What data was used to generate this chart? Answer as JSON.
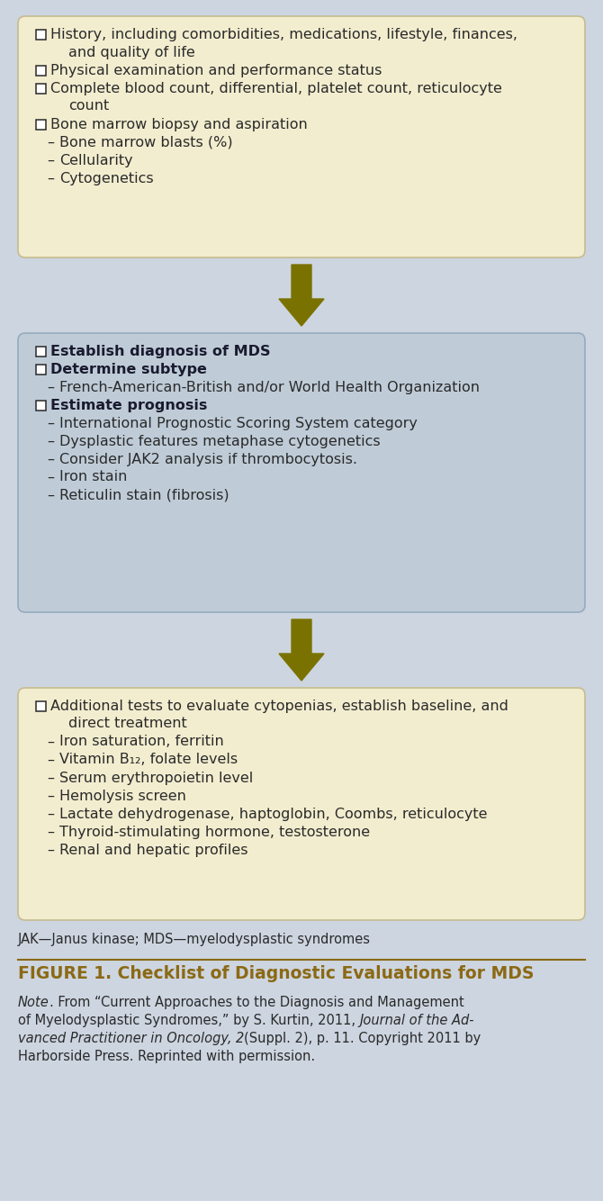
{
  "fig_bg": "#cdd5e0",
  "box1_bg": "#f2edcf",
  "box1_border": "#c5bc8e",
  "box2_bg": "#bfccd8",
  "box2_border": "#96abbe",
  "box3_bg": "#f2edcf",
  "box3_border": "#c5bc8e",
  "arrow_color": "#7a7200",
  "text_color": "#2a2a2a",
  "bold_text_color": "#1a1a2e",
  "figure_title": "FIGURE 1. Checklist of Diagnostic Evaluations for MDS",
  "figure_title_color": "#8B6914",
  "footnote": "JAK—Janus kinase; MDS—myelodysplastic syndromes",
  "box1_items": [
    {
      "type": "checkbox",
      "lines": [
        "History, including comorbidities, medications, lifestyle, finances,",
        "    and quality of life"
      ],
      "bold": false
    },
    {
      "type": "checkbox",
      "lines": [
        "Physical examination and performance status"
      ],
      "bold": false
    },
    {
      "type": "checkbox",
      "lines": [
        "Complete blood count, differential, platelet count, reticulocyte",
        "    count"
      ],
      "bold": false
    },
    {
      "type": "checkbox",
      "lines": [
        "Bone marrow biopsy and aspiration"
      ],
      "bold": false
    },
    {
      "type": "dash",
      "lines": [
        "Bone marrow blasts (%)"
      ],
      "bold": false
    },
    {
      "type": "dash",
      "lines": [
        "Cellularity"
      ],
      "bold": false
    },
    {
      "type": "dash",
      "lines": [
        "Cytogenetics"
      ],
      "bold": false
    }
  ],
  "box2_items": [
    {
      "type": "checkbox",
      "lines": [
        "Establish diagnosis of MDS"
      ],
      "bold": true
    },
    {
      "type": "checkbox",
      "lines": [
        "Determine subtype"
      ],
      "bold": true
    },
    {
      "type": "dash",
      "lines": [
        "French-American-British and/or World Health Organization"
      ],
      "bold": false
    },
    {
      "type": "checkbox",
      "lines": [
        "Estimate prognosis"
      ],
      "bold": true
    },
    {
      "type": "dash",
      "lines": [
        "International Prognostic Scoring System category"
      ],
      "bold": false
    },
    {
      "type": "dash",
      "lines": [
        "Dysplastic features metaphase cytogenetics"
      ],
      "bold": false
    },
    {
      "type": "dash",
      "lines": [
        "Consider JAK2 analysis if thrombocytosis."
      ],
      "bold": false
    },
    {
      "type": "dash",
      "lines": [
        "Iron stain"
      ],
      "bold": false
    },
    {
      "type": "dash",
      "lines": [
        "Reticulin stain (fibrosis)"
      ],
      "bold": false
    }
  ],
  "box3_items": [
    {
      "type": "checkbox",
      "lines": [
        "Additional tests to evaluate cytopenias, establish baseline, and",
        "    direct treatment"
      ],
      "bold": false
    },
    {
      "type": "dash",
      "lines": [
        "Iron saturation, ferritin"
      ],
      "bold": false
    },
    {
      "type": "dash",
      "lines": [
        "Vitamin B₁₂, folate levels"
      ],
      "bold": false
    },
    {
      "type": "dash",
      "lines": [
        "Serum erythropoietin level"
      ],
      "bold": false
    },
    {
      "type": "dash",
      "lines": [
        "Hemolysis screen"
      ],
      "bold": false
    },
    {
      "type": "dash",
      "lines": [
        "Lactate dehydrogenase, haptoglobin, Coombs, reticulocyte"
      ],
      "bold": false
    },
    {
      "type": "dash",
      "lines": [
        "Thyroid-stimulating hormone, testosterone"
      ],
      "bold": false
    },
    {
      "type": "dash",
      "lines": [
        "Renal and hepatic profiles"
      ],
      "bold": false
    }
  ],
  "note_parts": [
    {
      "text": "Note",
      "style": "italic"
    },
    {
      "text": ". From “Current Approaches to the Diagnosis and Management\nof Myelodysplastic Syndromes,” by S. Kurtin, 2011, ",
      "style": "normal"
    },
    {
      "text": "Journal of the Ad-\nvanced Practitioner in Oncology, 2",
      "style": "italic"
    },
    {
      "text": "(Suppl. 2), p. 11. Copyright 2011 by\nHarborside Press. Reprinted with permission.",
      "style": "normal"
    }
  ]
}
